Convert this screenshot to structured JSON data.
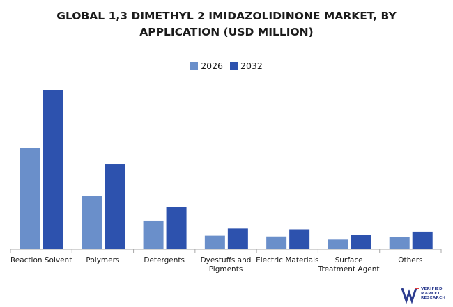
{
  "title_line1": "GLOBAL 1,3 DIMETHYL 2 IMIDAZOLIDINONE MARKET, BY",
  "title_line2": "APPLICATION (USD MILLION)",
  "colors": {
    "series_2026": "#6a8fca",
    "series_2032": "#2d52ae",
    "axis": "#a8a8a8",
    "text": "#1b1b1b",
    "logo": "#2d3d8f"
  },
  "logo": {
    "text": "VERIFIED MARKET RESEARCH",
    "icon": "vmr-logo-icon"
  },
  "chart_data": {
    "type": "bar",
    "title": "GLOBAL 1,3 DIMETHYL 2 IMIDAZOLIDINONE MARKET, BY APPLICATION (USD MILLION)",
    "xlabel": "",
    "ylabel": "",
    "grid": false,
    "legend_position": "top-center",
    "categories": [
      [
        "Reaction Solvent"
      ],
      [
        "Polymers"
      ],
      [
        "Detergents"
      ],
      [
        "Dyestuffs and",
        "Pigments"
      ],
      [
        "Electric Materials"
      ],
      [
        "Surface",
        "Treatment Agent"
      ],
      [
        "Others"
      ]
    ],
    "ylim": [
      0,
      100
    ],
    "series": [
      {
        "name": "2026",
        "values": [
          64,
          33.5,
          18,
          8.5,
          8,
          6,
          7.5
        ]
      },
      {
        "name": "2032",
        "values": [
          100,
          53.5,
          26.5,
          13,
          12.5,
          9,
          11
        ]
      }
    ]
  }
}
